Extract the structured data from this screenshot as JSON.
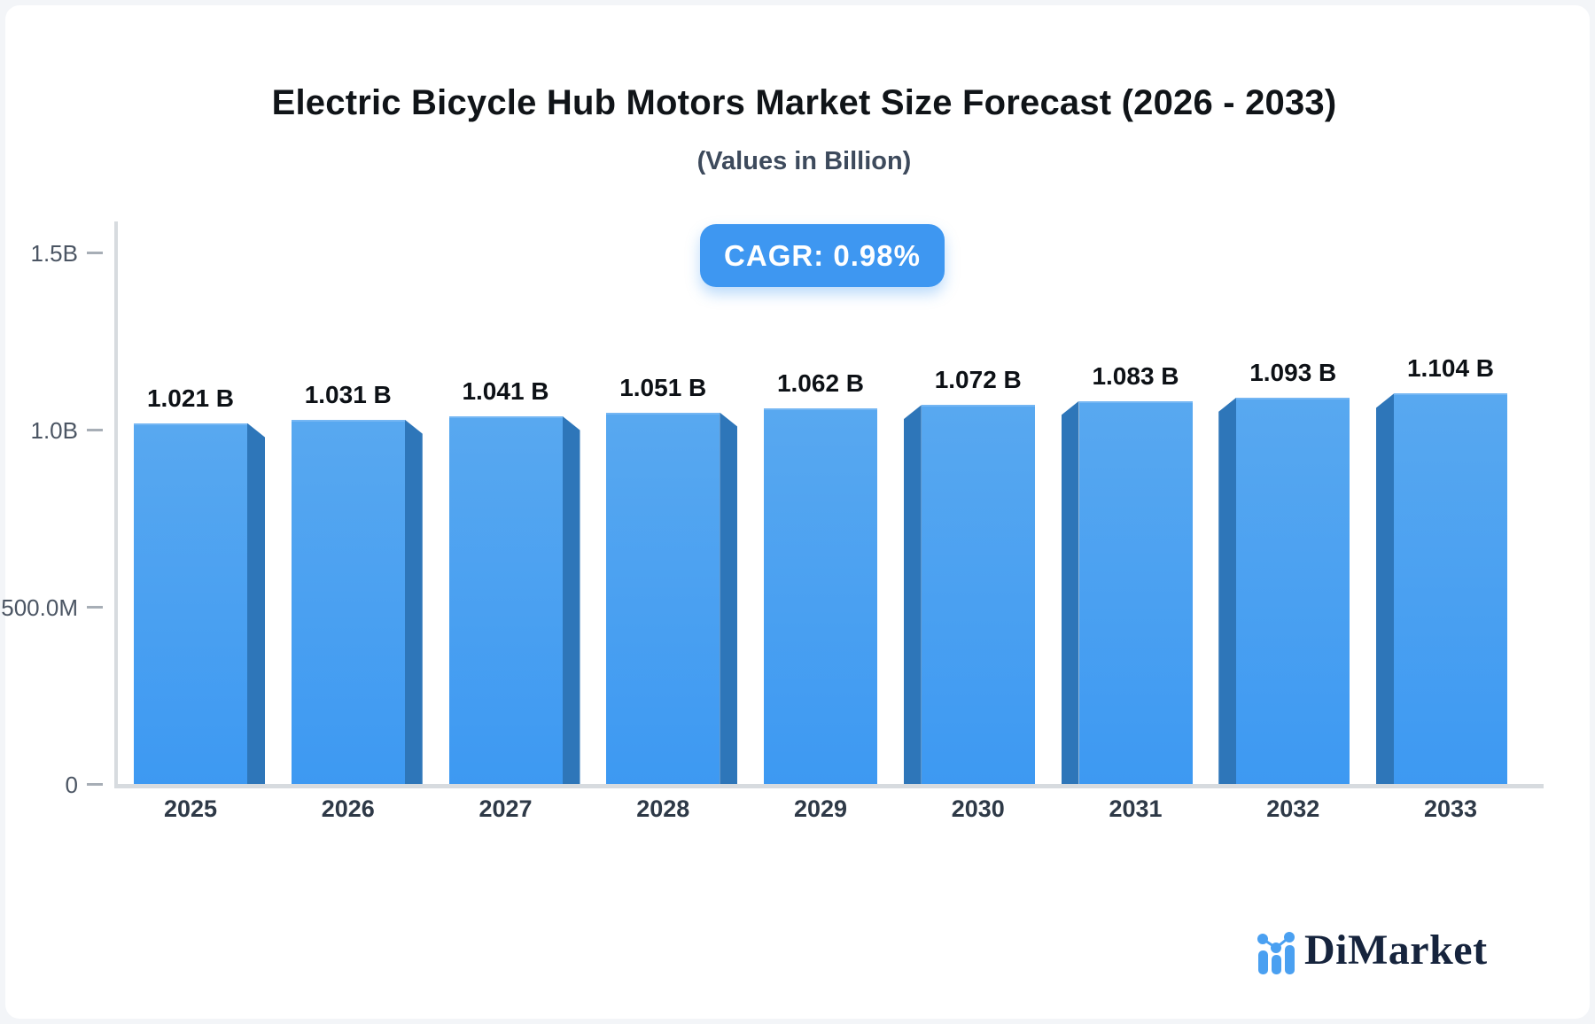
{
  "header": {
    "title": "Electric Bicycle Hub Motors Market Size Forecast (2026 - 2033)",
    "subtitle": "(Values in Billion)",
    "cagr_label": "CAGR: 0.98%"
  },
  "brand": {
    "name": "DiMarket",
    "icon": "bar-line-chart-icon"
  },
  "colors": {
    "badge_bg": "#3E97F1",
    "badge_text": "#FFFFFF",
    "bar_front_top": "#58A8F0",
    "bar_front_bottom": "#3D99F2",
    "bar_side": "#2E76B9",
    "axis": "#D7DBDF",
    "brand_blue": "#4AA0F1",
    "brand_text": "#16243D"
  },
  "chart_data": {
    "type": "bar",
    "title": "Electric Bicycle Hub Motors Market Size Forecast (2026 - 2033)",
    "subtitle": "(Values in Billion)",
    "unit": "Billion",
    "cagr": "0.98%",
    "categories": [
      "2025",
      "2026",
      "2027",
      "2028",
      "2029",
      "2030",
      "2031",
      "2032",
      "2033"
    ],
    "values": [
      1.021,
      1.031,
      1.041,
      1.051,
      1.062,
      1.072,
      1.083,
      1.093,
      1.104
    ],
    "value_labels": [
      "1.021 B",
      "1.031 B",
      "1.041 B",
      "1.051 B",
      "1.062 B",
      "1.072 B",
      "1.083 B",
      "1.093 B",
      "1.104 B"
    ],
    "ylim": [
      0,
      1.5
    ],
    "yticks": [
      {
        "value": 0,
        "label": "0"
      },
      {
        "value": 0.5,
        "label": "500.0M"
      },
      {
        "value": 1.0,
        "label": "1.0B"
      },
      {
        "value": 1.5,
        "label": "1.5B"
      }
    ],
    "grid": false,
    "legend": null,
    "bar_style": "3d-perspective"
  }
}
